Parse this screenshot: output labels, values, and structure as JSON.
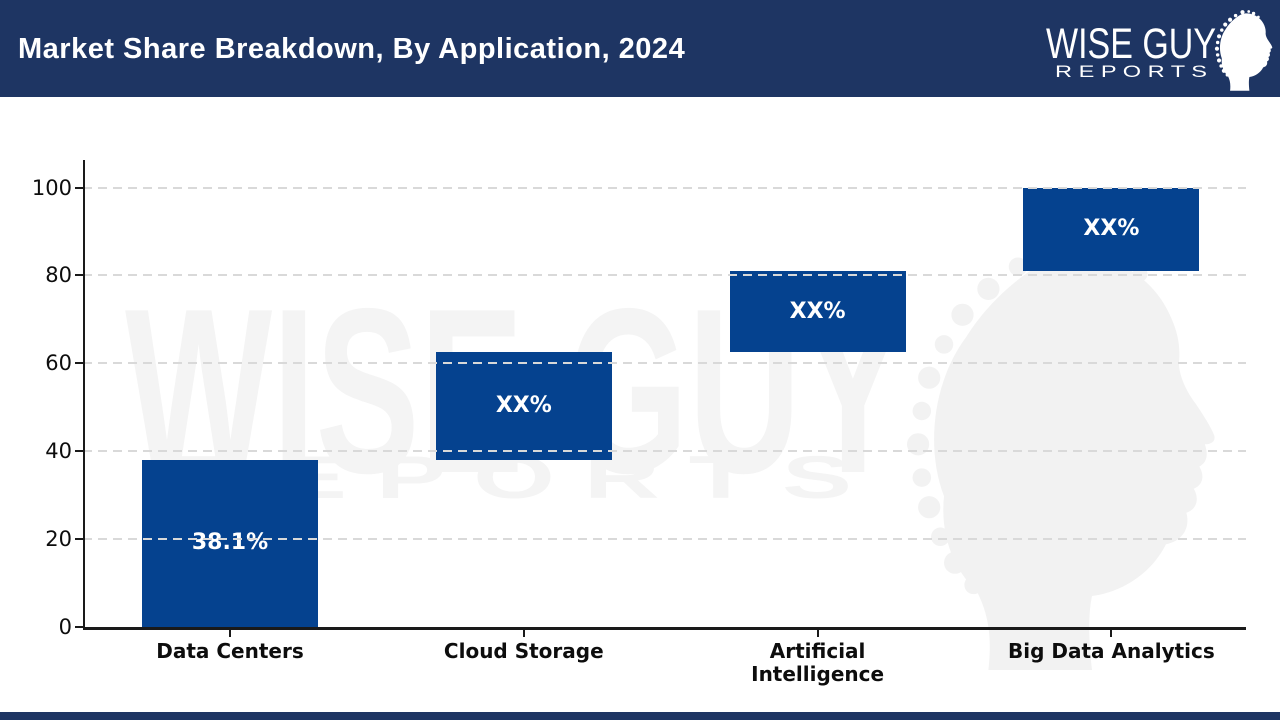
{
  "header": {
    "title": "Market Share Breakdown, By Application, 2024",
    "logo_line1": "WISE GUY",
    "logo_line2": "R E P O R T S"
  },
  "watermark": {
    "line1": "WISE GUY",
    "line2": "R E P O R T S"
  },
  "colors": {
    "header_bg": "#1e3563",
    "footer_bg": "#1e3563",
    "bar": "#05428f",
    "bar_label": "#ffffff",
    "grid": "#d9d9d9",
    "axis": "#1a1a1a",
    "watermark": "#f4f4f4"
  },
  "chart_data": {
    "type": "bar",
    "subtype": "waterfall",
    "title": "Market Share Breakdown, By Application, 2024",
    "categories": [
      "Data Centers",
      "Cloud Storage",
      "Artificial Intelligence",
      "Big Data Analytics"
    ],
    "bars": [
      {
        "category": "Data Centers",
        "axis_label": "Data Centers",
        "start": 0,
        "end": 38.1,
        "delta": 38.1,
        "label": "38.1%"
      },
      {
        "category": "Cloud Storage",
        "axis_label": "Cloud Storage",
        "start": 38.1,
        "end": 62.5,
        "delta": 24.4,
        "label": "XX%"
      },
      {
        "category": "Artificial Intelligence",
        "axis_label": "Artificial\nIntelligence",
        "start": 62.5,
        "end": 81.0,
        "delta": 18.5,
        "label": "XX%"
      },
      {
        "category": "Big Data Analytics",
        "axis_label": "Big Data Analytics",
        "start": 81.0,
        "end": 100.0,
        "delta": 19.0,
        "label": "XX%"
      }
    ],
    "xlabel": "",
    "ylabel": "",
    "ylim": [
      0,
      106
    ],
    "yticks": [
      0,
      20,
      40,
      60,
      80,
      100
    ],
    "grid": "horizontal-dashed",
    "legend": false,
    "bar_labels_redacted": "XX%"
  }
}
